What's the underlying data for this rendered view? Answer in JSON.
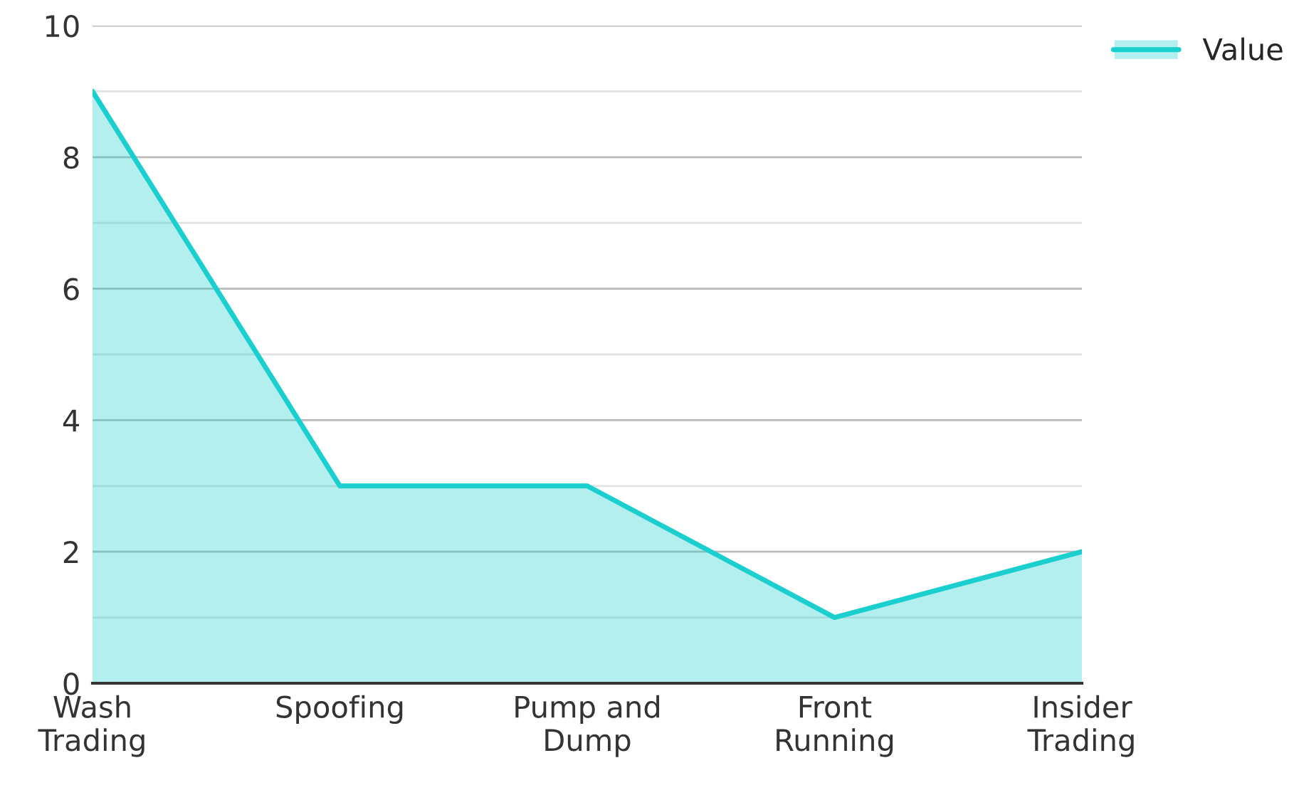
{
  "chart_data": {
    "type": "area",
    "categories": [
      "Wash\nTrading",
      "Spoofing",
      "Pump and\nDump",
      "Front\nRunning",
      "Insider\nTrading"
    ],
    "series": [
      {
        "name": "Value",
        "color": "#1ccfcf",
        "values": [
          9,
          3,
          3,
          1,
          2
        ]
      }
    ],
    "ylim": [
      0,
      10
    ],
    "yticks": [
      0,
      {
        "value": 1,
        "label": null
      },
      2,
      {
        "value": 3,
        "label": null
      },
      4,
      {
        "value": 5,
        "label": null
      },
      6,
      {
        "value": 7,
        "label": null
      },
      8,
      {
        "value": 9,
        "label": null
      },
      10
    ],
    "grid": "y",
    "legend": "top right"
  }
}
